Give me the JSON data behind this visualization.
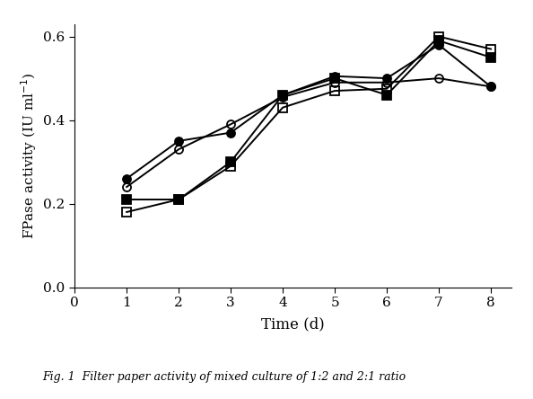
{
  "x": [
    1,
    2,
    3,
    4,
    5,
    6,
    7,
    8
  ],
  "series": [
    {
      "label": "filled_circle",
      "marker": "o",
      "fillstyle": "full",
      "color": "#000000",
      "values": [
        0.26,
        0.35,
        0.37,
        0.46,
        0.505,
        0.5,
        0.58,
        0.48
      ]
    },
    {
      "label": "open_circle",
      "marker": "o",
      "fillstyle": "none",
      "color": "#000000",
      "values": [
        0.24,
        0.33,
        0.39,
        0.455,
        0.49,
        0.49,
        0.5,
        0.48
      ]
    },
    {
      "label": "filled_square",
      "marker": "s",
      "fillstyle": "full",
      "color": "#000000",
      "values": [
        0.21,
        0.21,
        0.3,
        0.46,
        0.5,
        0.46,
        0.59,
        0.55
      ]
    },
    {
      "label": "open_square",
      "marker": "s",
      "fillstyle": "none",
      "color": "#000000",
      "values": [
        0.18,
        0.21,
        0.29,
        0.43,
        0.47,
        0.475,
        0.6,
        0.57
      ]
    }
  ],
  "xlabel": "Time (d)",
  "ylabel": "FPase activity (IU ml⁻¹)",
  "xlim": [
    0,
    8.4
  ],
  "ylim": [
    0,
    0.63
  ],
  "xticks": [
    0,
    1,
    2,
    3,
    4,
    5,
    6,
    7,
    8
  ],
  "yticks": [
    0,
    0.2,
    0.4,
    0.6
  ],
  "background_color": "#ffffff",
  "linewidth": 1.4,
  "markersize": 6.5,
  "caption": "Fig. 1  Filter paper activity of mixed culture of 1:2 and 2:1 ratio"
}
